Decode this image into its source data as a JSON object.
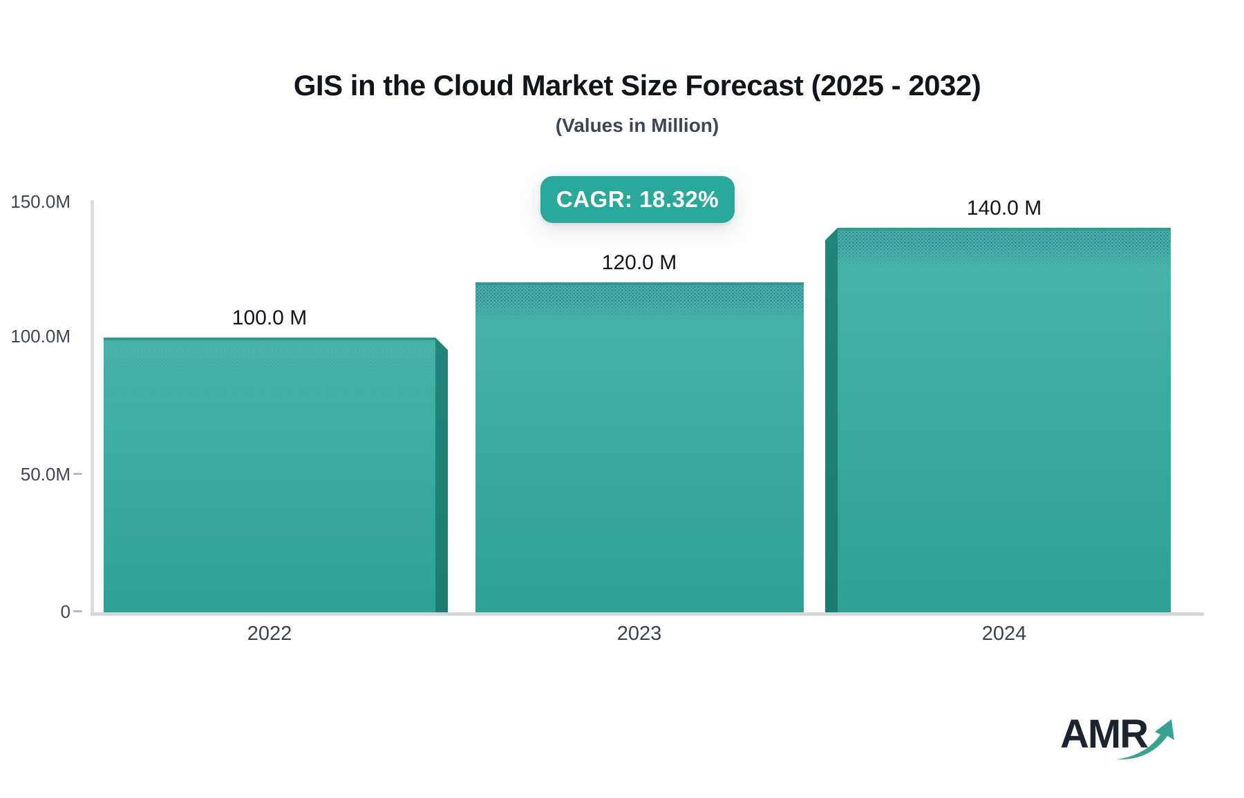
{
  "chart_data": {
    "type": "bar",
    "title": "GIS in the Cloud Market Size Forecast (2025 - 2032)",
    "subtitle": "(Values in Million)",
    "cagr_badge": "CAGR: 18.32%",
    "categories": [
      "2022",
      "2023",
      "2024"
    ],
    "values": [
      100.0,
      120.0,
      140.0
    ],
    "point_labels": [
      "100.0 M",
      "120.0 M",
      "140.0 M"
    ],
    "y_axis_ticks": [
      "150.0M",
      "100.0M",
      "50.0M",
      "0"
    ],
    "ylim": [
      0,
      150
    ],
    "unit": "Million",
    "grid": false,
    "legend": false,
    "bar_style": {
      "fill_top": "#4bb4a9",
      "fill_bottom": "#2da294",
      "bevel": "#1f8176",
      "forecast_halftone_dots_on": [
        "2023",
        "2024"
      ]
    }
  },
  "branding": {
    "logo_text": "AMR",
    "logo_color": "#1b2530",
    "arrow_color": "#39a092"
  },
  "colors": {
    "accent": "#2aa99b",
    "badge_text": "#ffffff",
    "title_text": "#10151c",
    "muted_text": "#3d4759",
    "axis_line": "#d7d9e0"
  }
}
